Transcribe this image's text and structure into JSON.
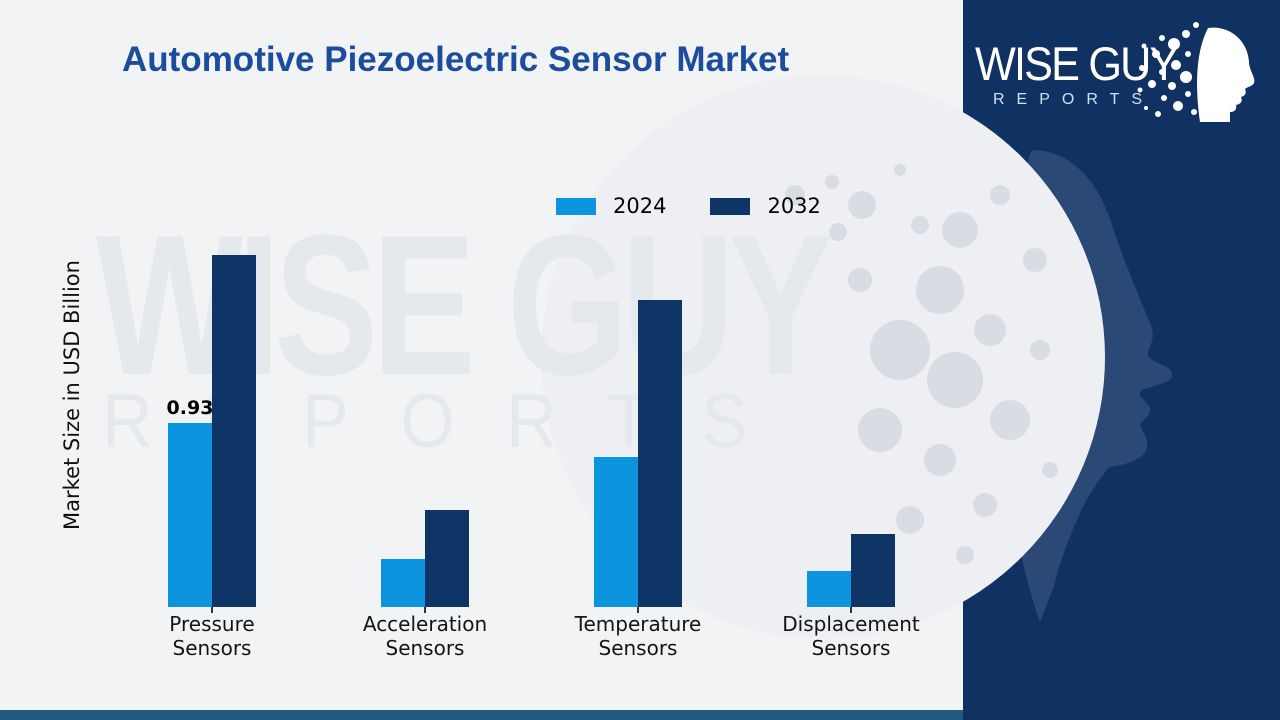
{
  "title": "Automotive Piezoelectric Sensor Market",
  "y_axis_label": "Market Size in USD Billion",
  "watermark": {
    "line1": "WISE GUY",
    "line2": "REPORTS"
  },
  "brand": {
    "line1": "WISE GUY",
    "line2": "REPORTS"
  },
  "colors": {
    "background": "#f2f3f4",
    "series_2024": "#0d94de",
    "series_2032": "#0e3566",
    "title_text": "#1b4d9c",
    "side_panel": "#103263",
    "footer_bar": "#1e5b7e"
  },
  "chart_data": {
    "type": "bar",
    "title": "Automotive Piezoelectric Sensor Market",
    "ylabel": "Market Size in USD Billion",
    "units": "USD Billion",
    "categories": [
      "Pressure Sensors",
      "Acceleration Sensors",
      "Temperature Sensors",
      "Displacement Sensors"
    ],
    "series": [
      {
        "name": "2024",
        "color": "#0d94de",
        "values": [
          0.93,
          0.24,
          0.76,
          0.18
        ],
        "value_labels": [
          "0.93",
          null,
          null,
          null
        ]
      },
      {
        "name": "2032",
        "color": "#0e3566",
        "values": [
          1.78,
          0.49,
          1.55,
          0.37
        ],
        "value_labels": [
          null,
          null,
          null,
          null
        ]
      }
    ],
    "ylim": [
      0,
      2
    ],
    "grid": false,
    "y_ticks_visible": false,
    "legend_position": "top-center"
  }
}
